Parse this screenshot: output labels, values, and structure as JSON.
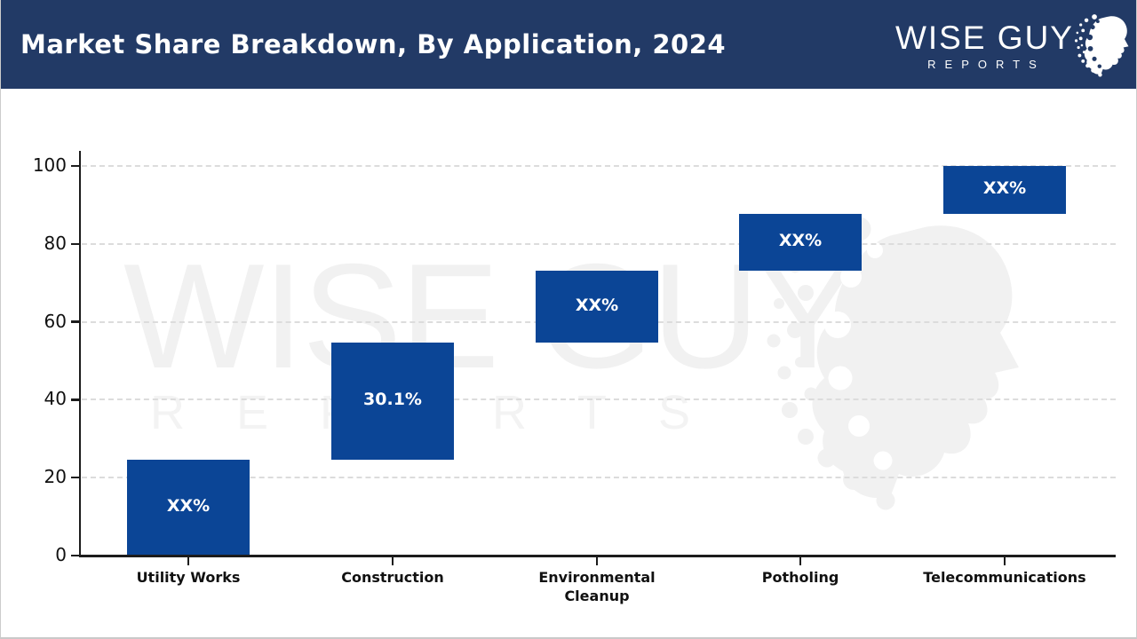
{
  "header": {
    "title": "Market Share Breakdown, By Application, 2024",
    "logo": {
      "line1": "WISE GUY",
      "line2": "REPORTS"
    }
  },
  "watermark": {
    "line1": "WISE GUY",
    "line2": "REPORTS"
  },
  "colors": {
    "header_bg": "#223a66",
    "bar": "#0b4596",
    "bar_label": "#ffffff",
    "axis": "#1c1c1c",
    "gridline": "#dcdcdc",
    "tick_label": "#111111",
    "watermark": "#f1f1f1"
  },
  "chart_data": {
    "type": "bar",
    "subtype": "waterfall",
    "title": "Market Share Breakdown, By Application, 2024",
    "xlabel": "",
    "ylabel": "",
    "ylim": [
      0,
      105
    ],
    "yticks": [
      0,
      20,
      40,
      60,
      80,
      100
    ],
    "grid": "horizontal-dashed",
    "legend": "none",
    "categories": [
      "Utility Works",
      "Construction",
      "Environmental Cleanup",
      "Potholing",
      "Telecommunications"
    ],
    "bars": [
      {
        "category": "Utility Works",
        "label_lines": [
          "Utility Works"
        ],
        "start": 0,
        "end": 24.5,
        "value": 24.5,
        "display": "XX%"
      },
      {
        "category": "Construction",
        "label_lines": [
          "Construction"
        ],
        "start": 24.5,
        "end": 54.6,
        "value": 30.1,
        "display": "30.1%"
      },
      {
        "category": "Environmental Cleanup",
        "label_lines": [
          "Environmental",
          "Cleanup"
        ],
        "start": 54.6,
        "end": 73.1,
        "value": 18.5,
        "display": "XX%"
      },
      {
        "category": "Potholing",
        "label_lines": [
          "Potholing"
        ],
        "start": 73.1,
        "end": 87.7,
        "value": 14.6,
        "display": "XX%"
      },
      {
        "category": "Telecommunications",
        "label_lines": [
          "Telecommunications"
        ],
        "start": 87.7,
        "end": 100,
        "value": 12.3,
        "display": "XX%"
      }
    ]
  }
}
